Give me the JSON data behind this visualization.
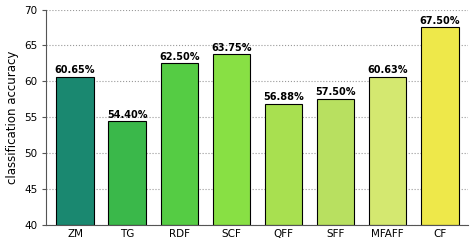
{
  "categories": [
    "ZM",
    "TG",
    "RDF",
    "SCF",
    "QFF",
    "SFF",
    "MFAFF",
    "CF"
  ],
  "values": [
    60.65,
    54.4,
    62.5,
    63.75,
    56.88,
    57.5,
    60.63,
    67.5
  ],
  "labels": [
    "60.65%",
    "54.40%",
    "62.50%",
    "63.75%",
    "56.88%",
    "57.50%",
    "60.63%",
    "67.50%"
  ],
  "bar_colors": [
    "#1a8870",
    "#3ab84a",
    "#55cc44",
    "#88e044",
    "#a8e050",
    "#b8e060",
    "#d4e870",
    "#eee84a"
  ],
  "ylabel": "classification accuracy",
  "ylim": [
    40,
    70
  ],
  "yticks": [
    40,
    45,
    50,
    55,
    60,
    65,
    70
  ],
  "grid_color": "#999999",
  "bg_color": "#ffffff",
  "plot_bg_color": "#ffffff",
  "bar_edge_color": "#000000",
  "label_fontsize": 7.0,
  "ylabel_fontsize": 8.5,
  "tick_fontsize": 7.5,
  "bar_width": 0.72,
  "bar_bottom": 40
}
